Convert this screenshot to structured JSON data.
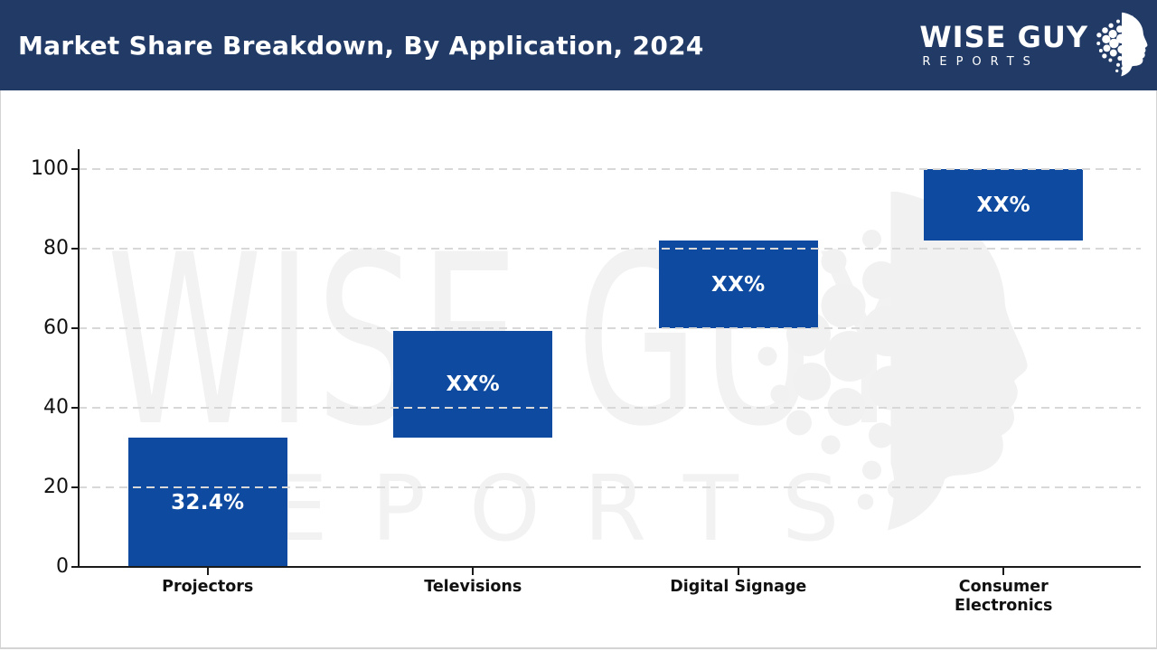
{
  "header": {
    "title": "Market Share Breakdown, By Application, 2024",
    "logo": {
      "brand_line1": "WISE GUY",
      "brand_line2": "REPORTS"
    }
  },
  "watermark": {
    "line1": "WISE GUY",
    "line2": "REPORTS"
  },
  "chart_data": {
    "type": "bar",
    "subtype": "floating-waterfall",
    "title": "Market Share Breakdown, By Application, 2024",
    "categories": [
      "Projectors",
      "Televisions",
      "Digital Signage",
      "Consumer Electronics"
    ],
    "segments": [
      {
        "category": "Projectors",
        "start": 0,
        "end": 32.4,
        "label": "32.4%"
      },
      {
        "category": "Televisions",
        "start": 32.4,
        "end": 59.4,
        "label": "XX%"
      },
      {
        "category": "Digital Signage",
        "start": 60,
        "end": 82,
        "label": "XX%"
      },
      {
        "category": "Consumer Electronics",
        "start": 82,
        "end": 100,
        "label": "XX%"
      }
    ],
    "ylim": [
      0,
      100
    ],
    "yticks": [
      0,
      20,
      40,
      60,
      80,
      100
    ],
    "xlabel": "",
    "ylabel": "",
    "grid": "horizontal-dashed",
    "legend": "none",
    "bar_color": "#0e4a9f",
    "bar_label_color": "#ffffff"
  },
  "colors": {
    "header_bg": "#213a66",
    "bar": "#0e4a9f",
    "grid": "#d8d8d8",
    "axis": "#1a1a1a",
    "watermark": "#f2f2f2",
    "frame": "#d4d4d4"
  }
}
